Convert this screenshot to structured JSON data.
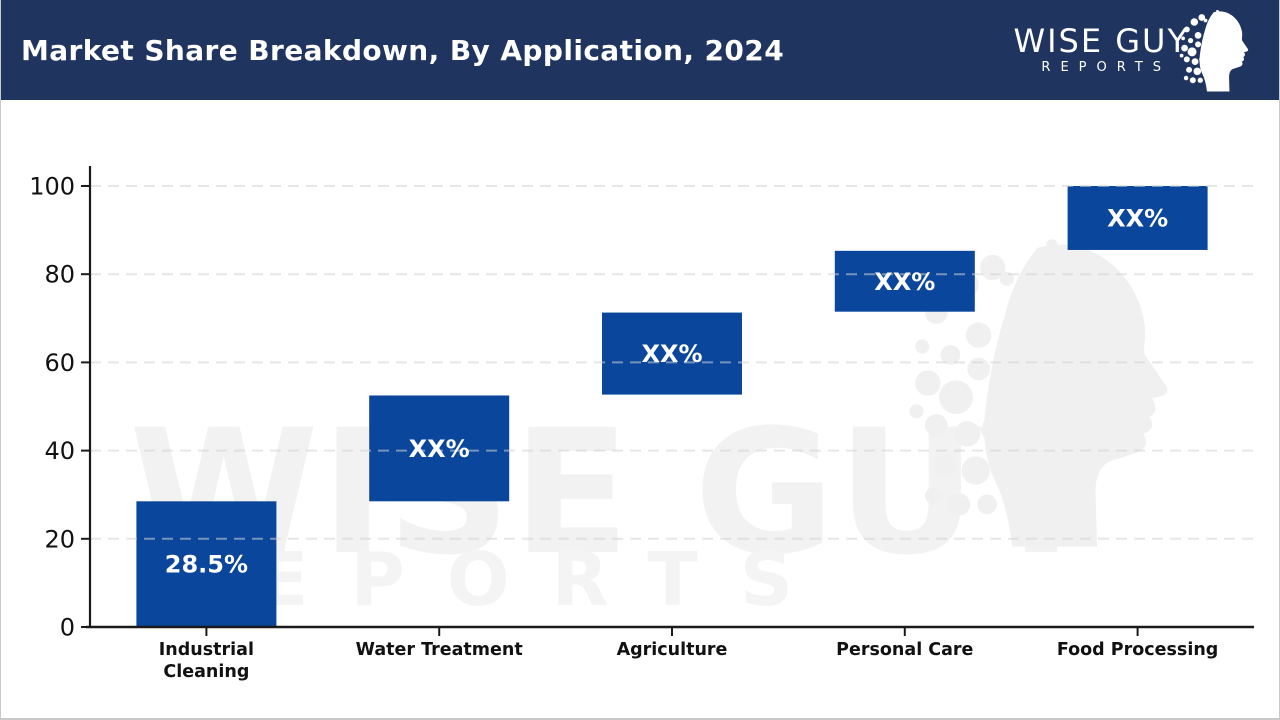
{
  "header": {
    "title": "Market Share Breakdown, By Application, 2024",
    "bg_color": "#203460",
    "logo": {
      "line1": "WISE GUY",
      "line2": "REPORTS"
    }
  },
  "watermark": {
    "line1": "WISE GUY",
    "line2": "REPORTS"
  },
  "chart_data": {
    "type": "bar",
    "subtype": "waterfall-floating-bars",
    "title": "Market Share Breakdown, By Application, 2024",
    "xlabel": "",
    "ylabel": "",
    "ylim": [
      0,
      105
    ],
    "yticks": [
      0,
      20,
      40,
      60,
      80,
      100
    ],
    "grid": "horizontal-dashed-light-gray",
    "legend": "none",
    "bar_color": "#0a469b",
    "label_color": "#ffffff",
    "categories": [
      "Industrial Cleaning",
      "Water Treatment",
      "Agriculture",
      "Personal Care",
      "Food Processing"
    ],
    "segments": [
      {
        "category": "Industrial Cleaning",
        "tick_lines": [
          "Industrial",
          "Cleaning"
        ],
        "start": 0,
        "end": 28.5,
        "label": "28.5%"
      },
      {
        "category": "Water Treatment",
        "tick_lines": [
          "Water Treatment"
        ],
        "start": 28.5,
        "end": 52.5,
        "label": "XX%"
      },
      {
        "category": "Agriculture",
        "tick_lines": [
          "Agriculture"
        ],
        "start": 52.7,
        "end": 71.3,
        "label": "XX%"
      },
      {
        "category": "Personal Care",
        "tick_lines": [
          "Personal Care"
        ],
        "start": 71.5,
        "end": 85.3,
        "label": "XX%"
      },
      {
        "category": "Food Processing",
        "tick_lines": [
          "Food Processing"
        ],
        "start": 85.5,
        "end": 100,
        "label": "XX%"
      }
    ]
  }
}
